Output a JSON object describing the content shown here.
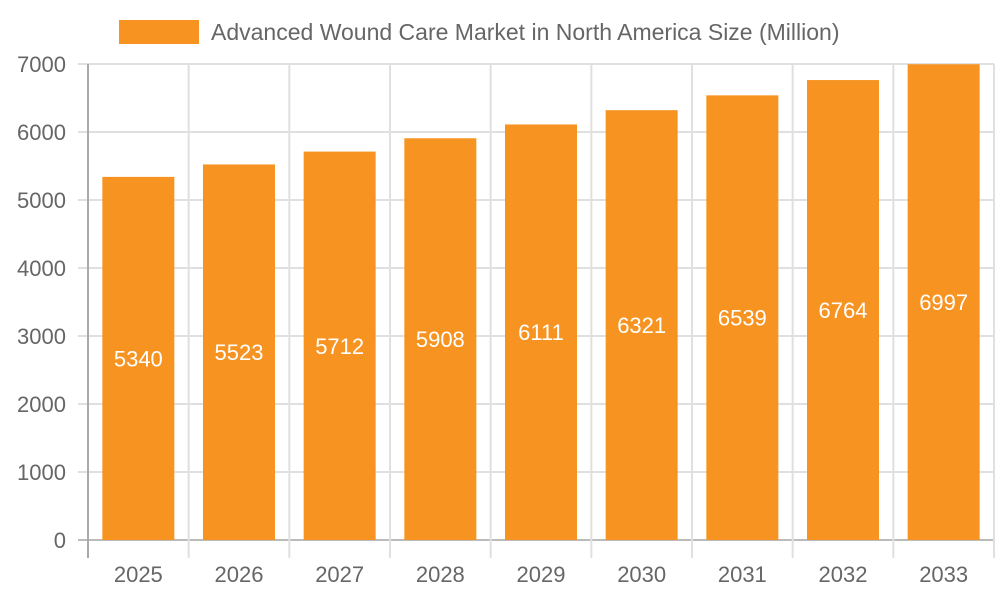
{
  "legend": {
    "label": "Advanced Wound Care Market in North America Size (Million)",
    "color": "#f79421"
  },
  "chart_data": {
    "type": "bar",
    "title": "",
    "xlabel": "",
    "ylabel": "",
    "categories": [
      "2025",
      "2026",
      "2027",
      "2028",
      "2029",
      "2030",
      "2031",
      "2032",
      "2033"
    ],
    "series": [
      {
        "name": "Advanced Wound Care Market in North America Size (Million)",
        "values": [
          5340,
          5523,
          5712,
          5908,
          6111,
          6321,
          6539,
          6764,
          6997
        ],
        "color": "#f79421"
      }
    ],
    "ylim": [
      0,
      7000
    ],
    "yticks": [
      0,
      1000,
      2000,
      3000,
      4000,
      5000,
      6000,
      7000
    ],
    "grid": true,
    "legend_position": "top",
    "data_labels": true
  }
}
